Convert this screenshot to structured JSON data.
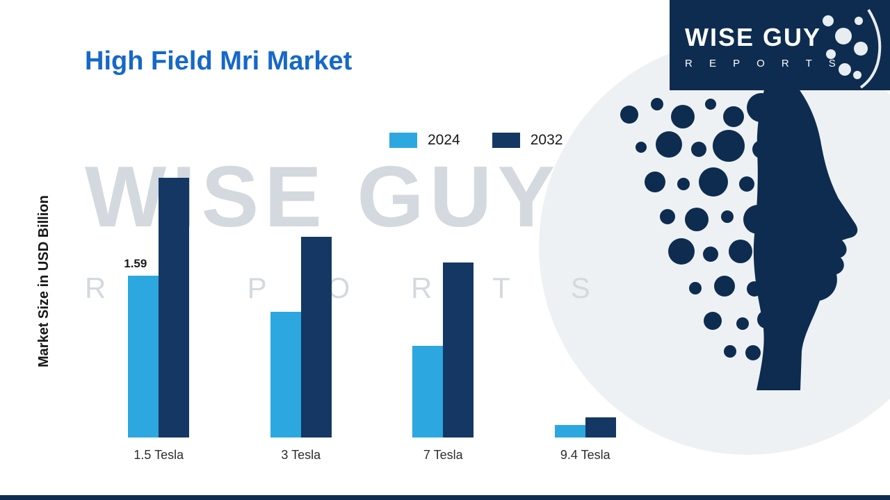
{
  "page": {
    "title": "High Field Mri Market"
  },
  "logo": {
    "wordmark": "WISE GUY",
    "subtext": "R E P O R T S"
  },
  "watermark": {
    "line1": "WISE GUY",
    "line2": "R E P O R T S"
  },
  "chart_data": {
    "type": "bar",
    "title": "High Field Mri Market",
    "ylabel": "Market Size in USD Billion",
    "xlabel": "",
    "categories": [
      "1.5 Tesla",
      "3 Tesla",
      "7 Tesla",
      "9.4 Tesla"
    ],
    "series": [
      {
        "name": "2024",
        "color": "#2da7e0",
        "values": [
          1.59,
          1.23,
          0.9,
          0.12
        ]
      },
      {
        "name": "2032",
        "color": "#143863",
        "values": [
          2.55,
          1.97,
          1.72,
          0.2
        ]
      }
    ],
    "ylim": [
      0,
      2.8
    ],
    "grid": false,
    "legend_position": "top",
    "annotations": [
      {
        "category": "1.5 Tesla",
        "series": "2024",
        "text": "1.59"
      }
    ]
  },
  "colors": {
    "title_blue": "#1668c9",
    "series_2024": "#2da7e0",
    "series_2032": "#143863",
    "brand_navy": "#0d2c50",
    "watermark_gray": "#d3d9de",
    "circle_gray": "#eef1f4"
  }
}
